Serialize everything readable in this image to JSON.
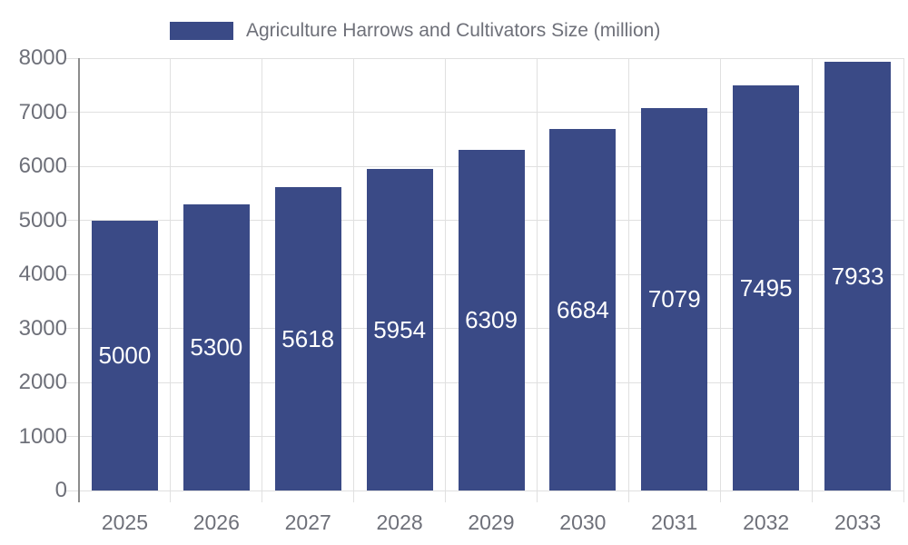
{
  "chart_data": {
    "type": "bar",
    "title": "Agriculture Harrows and Cultivators Size (million)",
    "categories": [
      "2025",
      "2026",
      "2027",
      "2028",
      "2029",
      "2030",
      "2031",
      "2032",
      "2033"
    ],
    "values": [
      5000,
      5300,
      5618,
      5954,
      6309,
      6684,
      7079,
      7495,
      7933
    ],
    "series": [
      {
        "name": "Agriculture Harrows and Cultivators Size (million)",
        "values": [
          5000,
          5300,
          5618,
          5954,
          6309,
          6684,
          7079,
          7495,
          7933
        ]
      }
    ],
    "xlabel": "",
    "ylabel": "",
    "ylim": [
      0,
      8000
    ],
    "yticks": [
      0,
      1000,
      2000,
      3000,
      4000,
      5000,
      6000,
      7000,
      8000
    ],
    "grid": true,
    "legend_position": "top",
    "bar_labels_inside": true,
    "colors": {
      "bar": "#3A4A86",
      "bar_label_text": "#FFFFFF",
      "axis_text": "#6E7079",
      "legend_text": "#6E7079",
      "gridline": "#E0E0E0",
      "axis_spine": "#8C8C8C",
      "background": "#FFFFFF"
    }
  }
}
